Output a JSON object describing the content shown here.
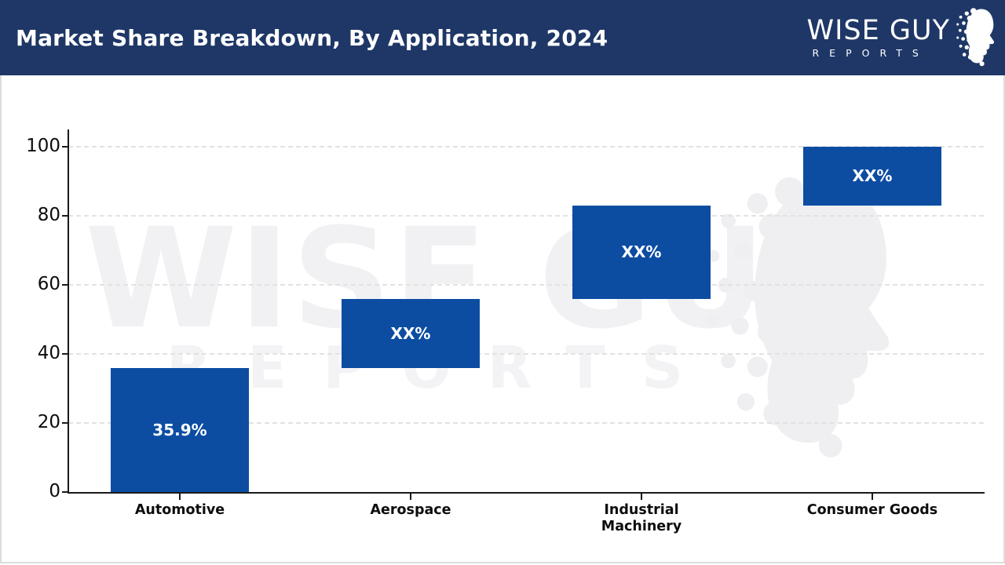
{
  "header": {
    "title": "Market Share Breakdown, By Application, 2024",
    "logo": {
      "line1": "WISE GUY",
      "line2": "REPORTS"
    }
  },
  "watermark": {
    "line1": "WISE GUY",
    "line2": "REPORTS"
  },
  "colors": {
    "header_bg": "#1e3766",
    "bar_blue": "#0c4da2",
    "bar_label_white": "#ffffff",
    "gridline": "#e2e2e2",
    "axis_black": "#1a1a1a"
  },
  "chart_data": {
    "type": "bar",
    "subtype": "waterfall",
    "title": "Market Share Breakdown, By Application, 2024",
    "categories": [
      "Automotive",
      "Aerospace",
      "Industrial Machinery",
      "Consumer Goods"
    ],
    "segments": [
      {
        "category": "Automotive",
        "start": 0,
        "end": 35.9,
        "label": "35.9%"
      },
      {
        "category": "Aerospace",
        "start": 35.9,
        "end": 55.9,
        "label": "XX%"
      },
      {
        "category": "Industrial Machinery",
        "start": 55.9,
        "end": 83.0,
        "label": "XX%"
      },
      {
        "category": "Consumer Goods",
        "start": 83.0,
        "end": 100,
        "label": "XX%"
      }
    ],
    "yticks": [
      0,
      20,
      40,
      60,
      80,
      100
    ],
    "ylim": [
      0,
      105
    ],
    "xlabel": "",
    "ylabel": "",
    "grid": "horizontal-dashed",
    "legend": "none",
    "bar_color": "#0c4da2",
    "label_color": "#ffffff"
  }
}
